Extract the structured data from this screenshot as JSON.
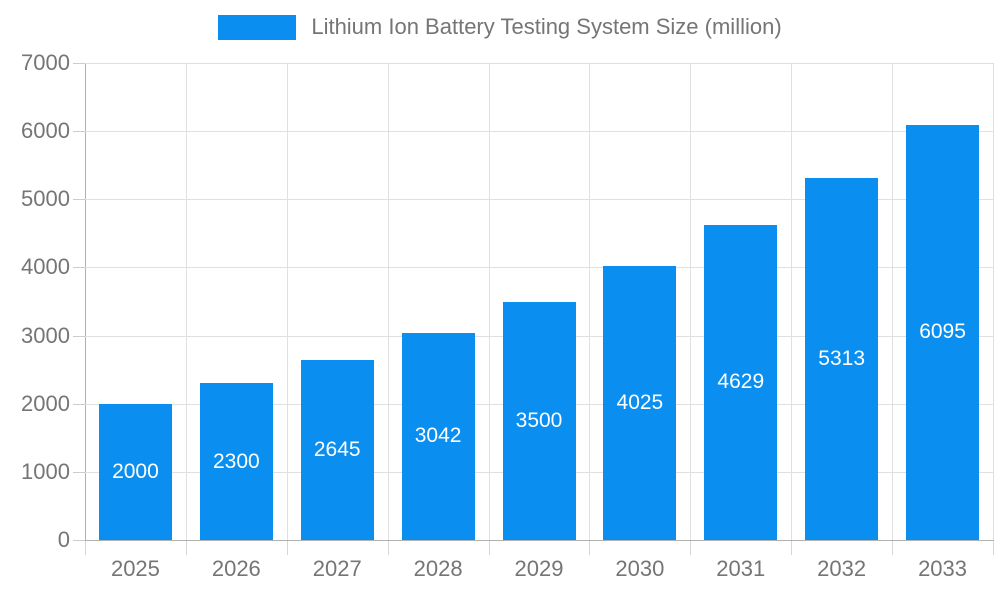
{
  "legend": {
    "label": "Lithium Ion Battery Testing System Size (million)",
    "swatch_color": "#0a8ff0"
  },
  "chart_data": {
    "type": "bar",
    "title": "Lithium Ion Battery Testing System Size (million)",
    "categories": [
      "2025",
      "2026",
      "2027",
      "2028",
      "2029",
      "2030",
      "2031",
      "2032",
      "2033"
    ],
    "values": [
      2000,
      2300,
      2645,
      3042,
      3500,
      4025,
      4629,
      5313,
      6095
    ],
    "xlabel": "",
    "ylabel": "",
    "ylim": [
      0,
      7000
    ],
    "ytick_step": 1000,
    "grid": true,
    "legend_position": "top-center",
    "bar_color": "#0a8ff0",
    "value_label_color": "#ffffff",
    "axis_text_color": "#757575",
    "gridline_color": "#e0e0e0",
    "axis_line_color": "#b0b0b0"
  }
}
